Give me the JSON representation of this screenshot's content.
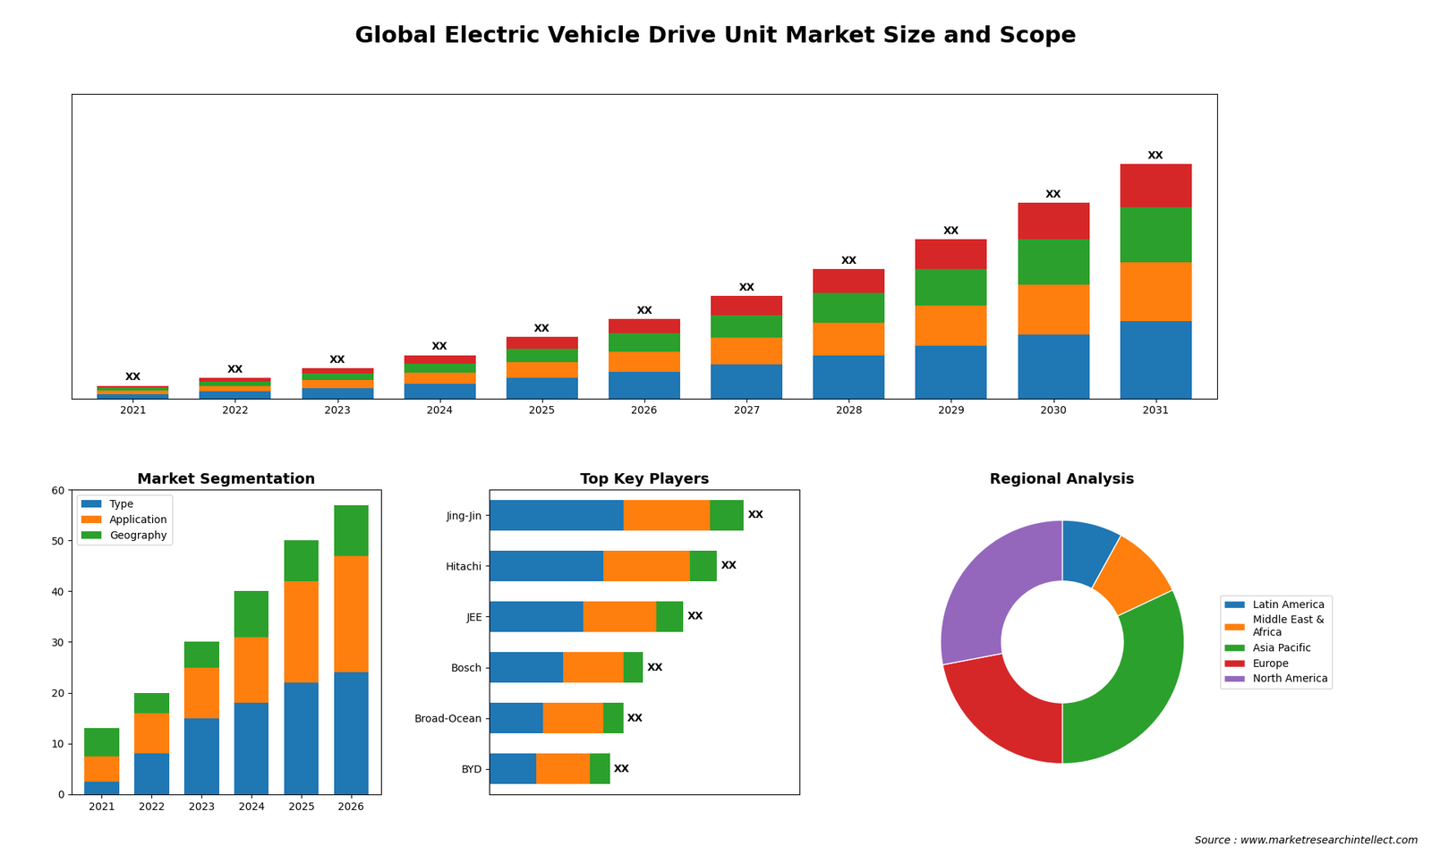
{
  "title": "Global Electric Vehicle Drive Unit Market Size and Scope",
  "annotations": [
    "Source : www.marketresearchintellect.com"
  ],
  "chart_data": [
    {
      "type": "bar",
      "stacked": true,
      "data_labels": true,
      "tick_labels": "x",
      "categories": [
        "2021",
        "2022",
        "2023",
        "2024",
        "2025",
        "2026",
        "2027",
        "2028",
        "2029",
        "2030",
        "2031"
      ],
      "series": [
        {
          "values": [
            1.0,
            1.5,
            2.2,
            3.2,
            4.5,
            5.8,
            7.5,
            9.5,
            11.5,
            14.0,
            17.0
          ]
        },
        {
          "values": [
            0.8,
            1.2,
            1.8,
            2.5,
            3.5,
            4.5,
            5.8,
            7.2,
            9.0,
            11.0,
            13.0
          ]
        },
        {
          "values": [
            0.6,
            1.0,
            1.5,
            2.0,
            3.0,
            4.0,
            5.0,
            6.5,
            8.0,
            10.0,
            12.0
          ]
        },
        {
          "values": [
            0.4,
            0.8,
            1.2,
            1.8,
            2.5,
            3.2,
            4.2,
            5.3,
            6.5,
            8.0,
            9.5
          ],
          "value_labels": [
            "XX",
            "XX",
            "XX",
            "XX",
            "XX",
            "XX",
            "XX",
            "XX",
            "XX",
            "XX",
            "XX"
          ]
        }
      ],
      "ylim": [
        0,
        66.95
      ]
    },
    {
      "type": "bar",
      "stacked": true,
      "title": "Market Segmentation",
      "categories": [
        "2021",
        "2022",
        "2023",
        "2024",
        "2025",
        "2026"
      ],
      "series": [
        {
          "name": "Type",
          "values": [
            2.5,
            8.0,
            15.0,
            18.0,
            22.0,
            24.0
          ]
        },
        {
          "name": "Application",
          "values": [
            5.0,
            8.0,
            10.0,
            13.0,
            20.0,
            23.0
          ]
        },
        {
          "name": "Geography",
          "values": [
            5.5,
            4.0,
            5.0,
            9.0,
            8.0,
            10.0
          ]
        }
      ],
      "ylim": [
        0,
        60
      ],
      "yticks": [
        0,
        10,
        20,
        30,
        40,
        50,
        60
      ],
      "legend": "upper left"
    },
    {
      "type": "bar",
      "orientation": "horizontal",
      "stacked": true,
      "title": "Top Key Players",
      "data_labels": true,
      "tick_labels": "y",
      "categories": [
        "Jing-Jin",
        "Hitachi",
        "JEE",
        "Bosch",
        "Broad-Ocean",
        "BYD"
      ],
      "series": [
        {
          "values": [
            20,
            17,
            14,
            11,
            8,
            7
          ]
        },
        {
          "values": [
            13,
            13,
            11,
            9,
            9,
            8
          ]
        },
        {
          "values": [
            5,
            4,
            4,
            3,
            3,
            3
          ],
          "value_labels": [
            "XX",
            "XX",
            "XX",
            "XX",
            "XX",
            "XX"
          ]
        }
      ],
      "xlim": [
        0,
        46.36
      ]
    },
    {
      "type": "donut",
      "title": "Regional Analysis",
      "categories": [
        "Latin America",
        "Middle East &\nAfrica",
        "Asia Pacific",
        "Europe",
        "North America"
      ],
      "values": [
        8,
        10,
        32,
        22,
        28
      ],
      "legend": "center left"
    }
  ]
}
